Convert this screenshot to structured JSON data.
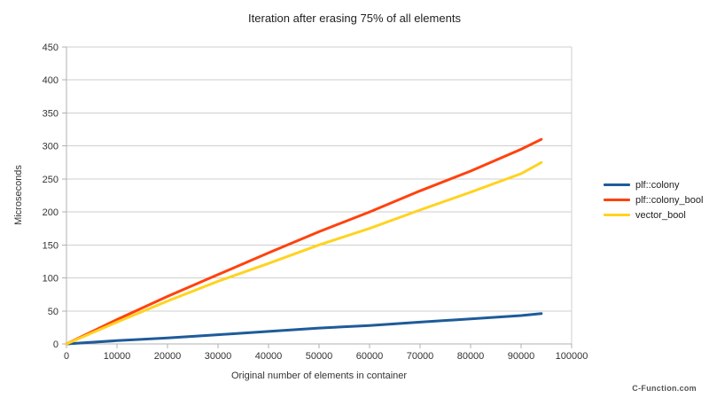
{
  "page": {
    "background": "#ffffff",
    "watermark": "C-Function.com"
  },
  "chart_data": {
    "type": "line",
    "title": "Iteration after erasing 75% of all elements",
    "xlabel": "Original number of elements in container",
    "ylabel": "Microseconds",
    "xlim": [
      0,
      100000
    ],
    "ylim": [
      0,
      450
    ],
    "x_ticks": [
      0,
      10000,
      20000,
      30000,
      40000,
      50000,
      60000,
      70000,
      80000,
      90000,
      100000
    ],
    "y_ticks": [
      0,
      50,
      100,
      150,
      200,
      250,
      300,
      350,
      400,
      450
    ],
    "grid": "horizontal",
    "legend_position": "right",
    "x": [
      0,
      10000,
      20000,
      30000,
      40000,
      50000,
      60000,
      70000,
      80000,
      90000,
      94000
    ],
    "series": [
      {
        "name": "plf::colony",
        "color": "#1F5B99",
        "values": [
          0,
          5,
          9,
          14,
          19,
          24,
          28,
          33,
          38,
          43,
          46
        ]
      },
      {
        "name": "plf::colony_bool",
        "color": "#FF420E",
        "values": [
          0,
          37,
          72,
          105,
          138,
          170,
          200,
          232,
          262,
          295,
          310
        ]
      },
      {
        "name": "vector_bool",
        "color": "#FFD320",
        "values": [
          0,
          33,
          65,
          95,
          122,
          150,
          175,
          203,
          230,
          258,
          275
        ]
      }
    ],
    "colors": {
      "gridline": "#cfcfcf",
      "axis": "#b0b0b0",
      "tick_label": "#333333"
    }
  }
}
